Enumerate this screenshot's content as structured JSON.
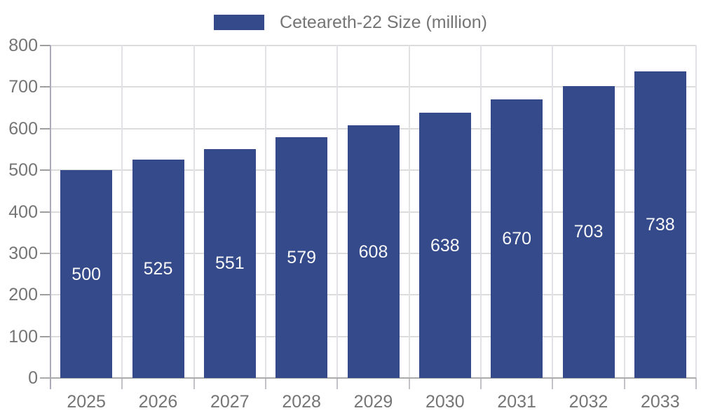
{
  "legend": {
    "label": "Ceteareth-22 Size (million)"
  },
  "chart_data": {
    "type": "bar",
    "title": "",
    "xlabel": "",
    "ylabel": "",
    "categories": [
      "2025",
      "2026",
      "2027",
      "2028",
      "2029",
      "2030",
      "2031",
      "2032",
      "2033"
    ],
    "series": [
      {
        "name": "Ceteareth-22 Size (million)",
        "values": [
          500,
          525,
          551,
          579,
          608,
          638,
          670,
          703,
          738
        ]
      }
    ],
    "ylim": [
      0,
      800
    ],
    "ytick_step": 100,
    "yticks": [
      0,
      100,
      200,
      300,
      400,
      500,
      600,
      700,
      800
    ],
    "grid": true,
    "legend_position": "top",
    "value_label_position": "inside-middle",
    "colors": {
      "bar": "#354a8a",
      "bar_label": "#f8f8f8",
      "axis_text": "#757575",
      "grid_line": "#dcdcdc",
      "axis_line": "#ababab"
    }
  }
}
